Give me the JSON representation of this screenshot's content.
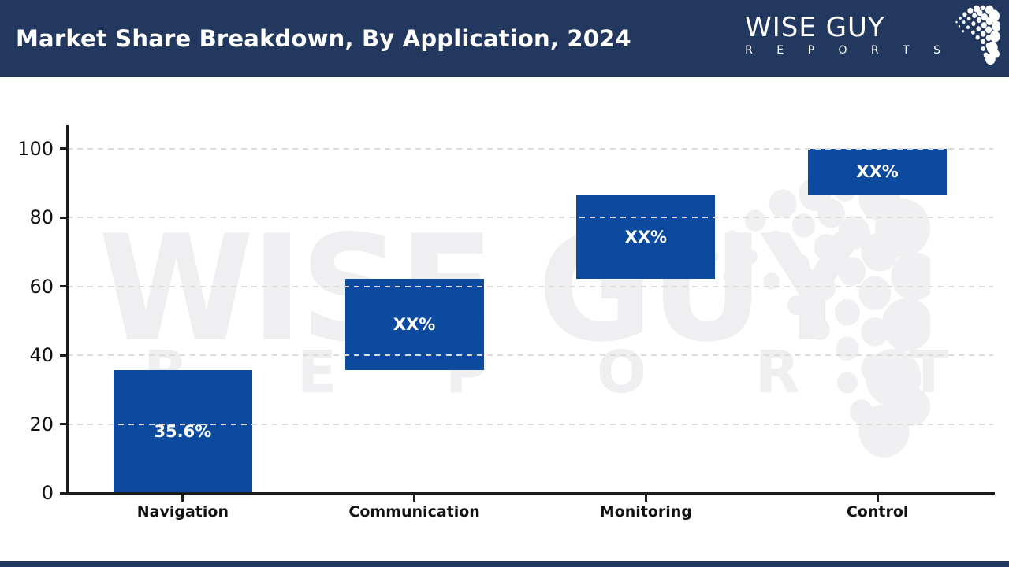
{
  "header": {
    "title": "Market Share Breakdown, By Application, 2024",
    "logo": {
      "line1": "WISE GUY",
      "line2": "R E P O R T S"
    },
    "bg_color": "#22385f"
  },
  "watermark": {
    "line1": "WISE GUY",
    "line2": "R E P O R T S"
  },
  "footer": {
    "bg_color": "#22385f"
  },
  "chart_data": {
    "type": "waterfall",
    "title": "Market Share Breakdown, By Application, 2024",
    "categories": [
      "Navigation",
      "Communication",
      "Monitoring",
      "Control"
    ],
    "segments": [
      {
        "category": "Navigation",
        "start": 0,
        "end": 35.6,
        "label": "35.6%"
      },
      {
        "category": "Communication",
        "start": 35.6,
        "end": 62.2,
        "label": "XX%"
      },
      {
        "category": "Monitoring",
        "start": 62.2,
        "end": 86.4,
        "label": "XX%"
      },
      {
        "category": "Control",
        "start": 86.4,
        "end": 100,
        "label": "XX%"
      }
    ],
    "ylim": [
      0,
      100
    ],
    "yticks": [
      0,
      20,
      40,
      60,
      80,
      100
    ],
    "grid": "horizontal-dashed",
    "grid_color": "#dcdcdc",
    "axis_color": "#1c1c1c",
    "bar_color": "#0b4a9e",
    "label_color": "#ffffff",
    "legend": "none"
  }
}
